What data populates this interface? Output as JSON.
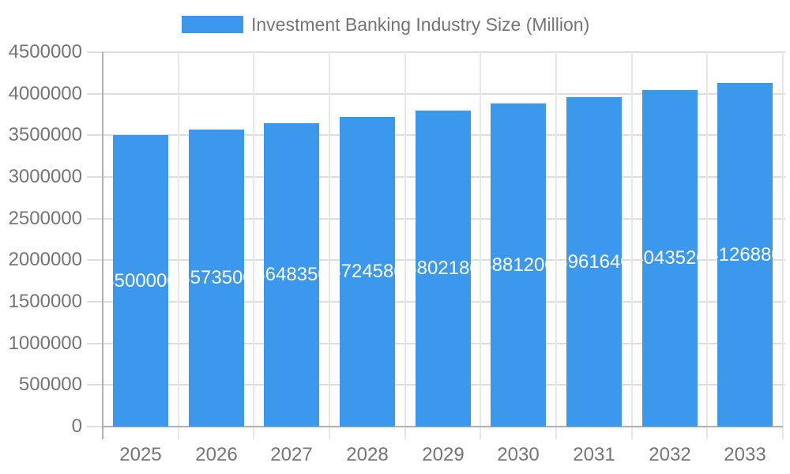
{
  "chart_data": {
    "type": "bar",
    "title": "Investment Banking Industry Size (Million)",
    "legend_position": "top",
    "categories": [
      "2025",
      "2026",
      "2027",
      "2028",
      "2029",
      "2030",
      "2031",
      "2032",
      "2033"
    ],
    "series": [
      {
        "name": "Investment Banking Industry Size (Million)",
        "values": [
          3500000,
          3573500,
          3648350,
          3724580,
          3802180,
          3881200,
          3961640,
          4043520,
          4126880
        ]
      }
    ],
    "value_labels_visible_fragments": [
      "50000",
      "57350",
      "64835",
      "72458",
      "80218",
      "88120",
      "96164",
      "04352",
      "12688"
    ],
    "show_value_labels": true,
    "xlabel": "",
    "ylabel": "",
    "ylim": [
      0,
      4500000
    ],
    "ytick_step": 500000,
    "ytick_labels": [
      "0",
      "500000",
      "1000000",
      "1500000",
      "2000000",
      "2500000",
      "3000000",
      "3500000",
      "4000000",
      "4500000"
    ],
    "grid": true,
    "colors": {
      "bar": "#3C98EC",
      "bar_value_label": "#ffffff",
      "axis_text": "#757575",
      "hgrid_line": "#dedede",
      "vgrid_line": "#e8e8e8",
      "axis_line": "#b0b0b0",
      "background": "#ffffff"
    }
  }
}
